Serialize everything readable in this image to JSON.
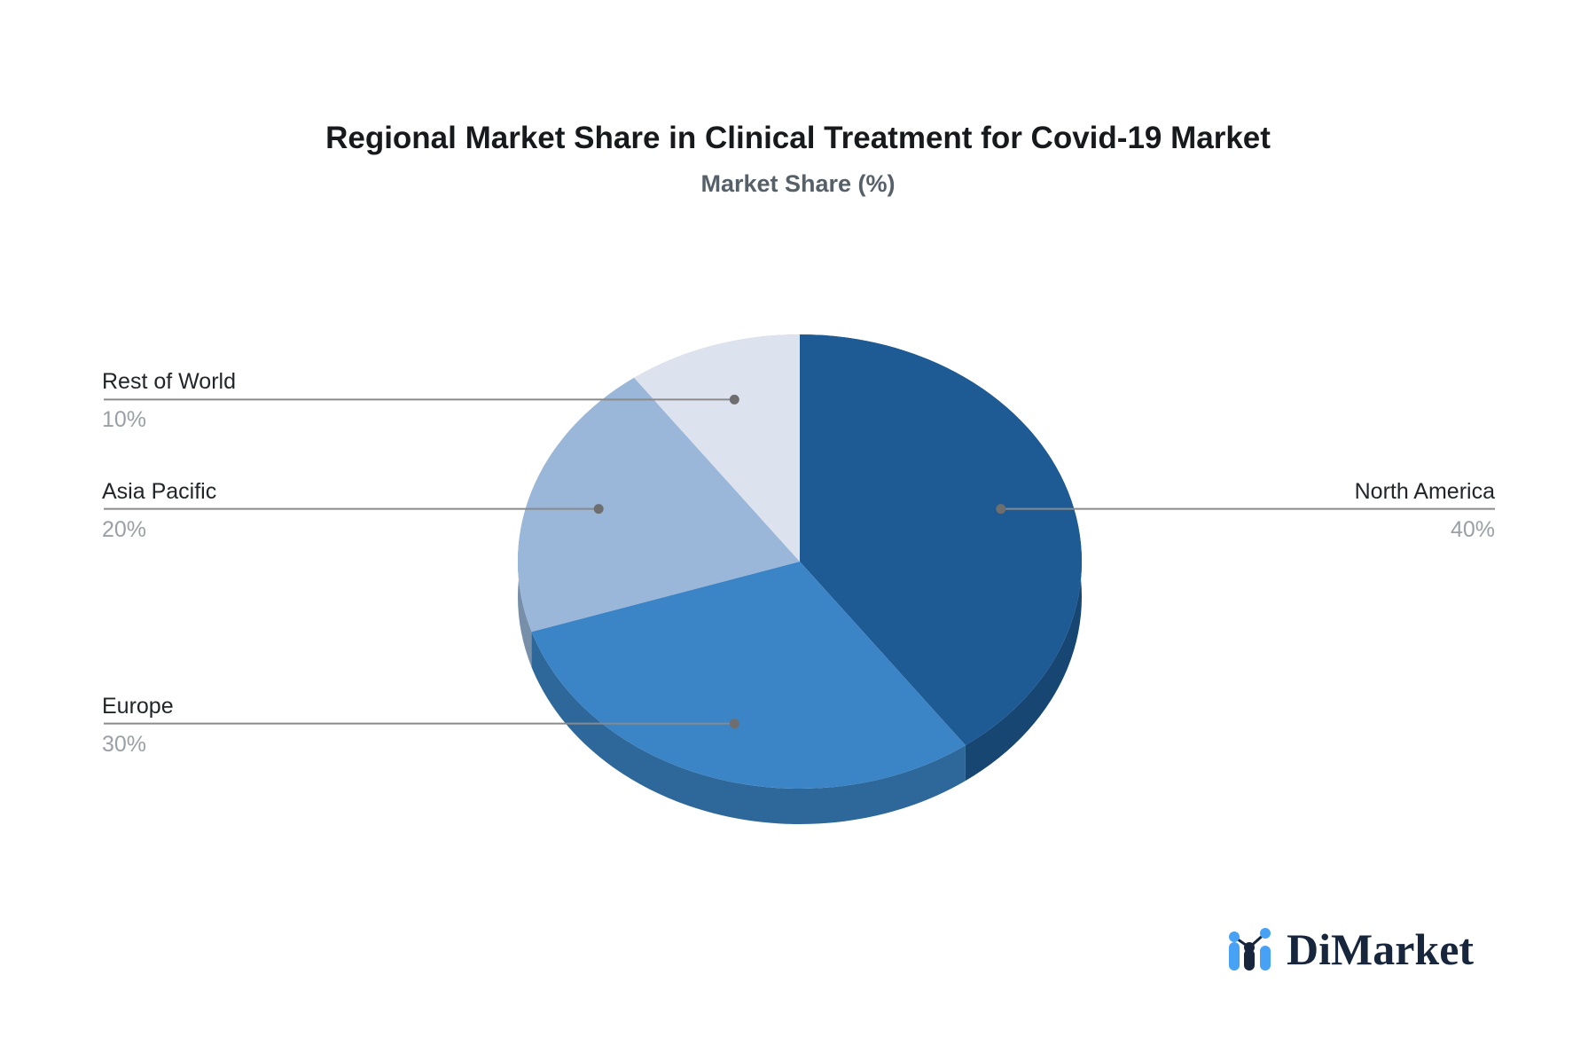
{
  "chart_data": {
    "type": "pie",
    "pie_3d": true,
    "title": "Regional Market Share in Clinical Treatment for Covid-19 Market",
    "subtitle": "Market Share (%)",
    "unit": "%",
    "start_angle": "12-o-clock",
    "direction": "clockwise",
    "legend_position": "leader-line-labels",
    "categories": [
      "North America",
      "Europe",
      "Asia Pacific",
      "Rest of World"
    ],
    "values": [
      40,
      30,
      20,
      10
    ],
    "value_labels": [
      "40%",
      "30%",
      "20%",
      "10%"
    ],
    "colors": [
      "#1e5a94",
      "#3b85c6",
      "#9ab7d9",
      "#dde3ee"
    ],
    "label_text_color": "#22262a",
    "value_text_color": "#9aa0a6",
    "leader_line_color": "#8a8a8a",
    "background_color": "#ffffff"
  },
  "logo": {
    "text": "DiMarket",
    "accent_color": "#47a2f6",
    "dark_color": "#17263c"
  }
}
